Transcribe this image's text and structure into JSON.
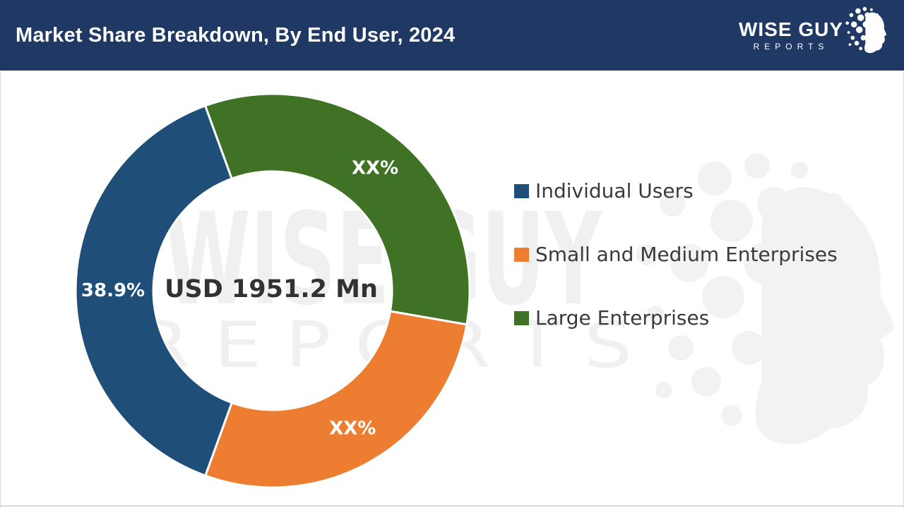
{
  "header": {
    "title": "Market Share Breakdown, By End User, 2024",
    "logo": {
      "line1": "WISE GUY",
      "line2": "REPORTS"
    }
  },
  "watermark": {
    "brand": "WISE GUY",
    "sub": "R E P O R T S"
  },
  "chart_data": {
    "type": "pie",
    "subtype": "donut",
    "title": "Market Share Breakdown, By End User, 2024",
    "center_label": "USD 1951.2 Mn",
    "start_angle_deg": 110,
    "direction": "counterclockwise",
    "legend_position": "right",
    "segments": [
      {
        "name": "Individual Users",
        "value_pct": 38.9,
        "display_label": "38.9%",
        "color": "#1f4e79"
      },
      {
        "name": "Small and Medium Enterprises",
        "value_pct": 27.8,
        "display_label": "XX%",
        "color": "#ed7d31"
      },
      {
        "name": "Large Enterprises",
        "value_pct": 33.3,
        "display_label": "XX%",
        "color": "#3f7225"
      }
    ]
  },
  "colors": {
    "header_bg": "#1f3864",
    "title_text": "#ffffff",
    "center_text": "#323232",
    "legend_text": "#3a3a3a",
    "watermark": "#f0f0f0",
    "segment_blue": "#1f4e79",
    "segment_orange": "#ed7d31",
    "segment_green": "#3f7225"
  }
}
